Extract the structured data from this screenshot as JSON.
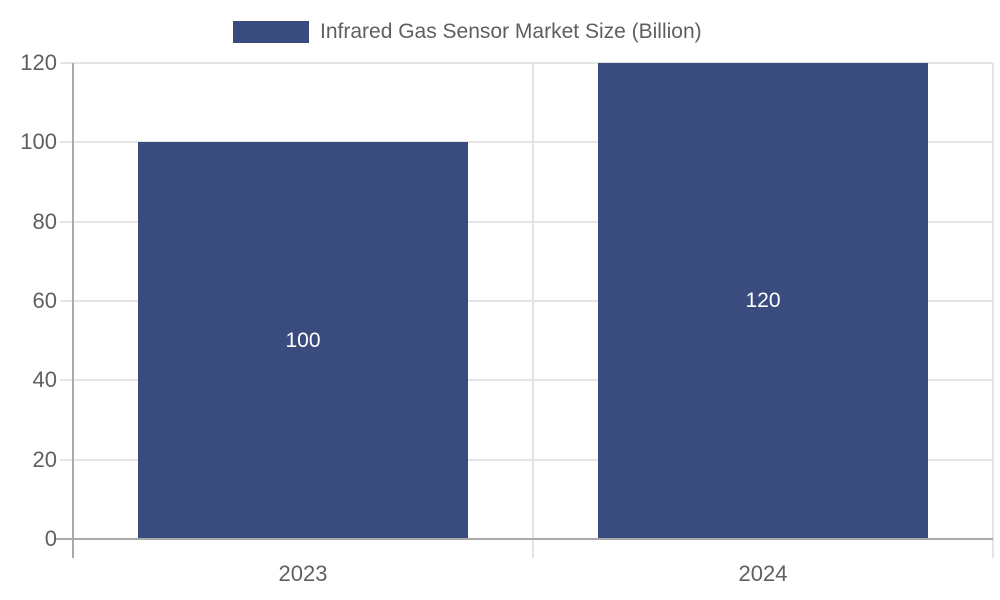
{
  "legend": {
    "label": "Infrared Gas Sensor Market Size (Billion)"
  },
  "chart_data": {
    "type": "bar",
    "title": "",
    "categories": [
      "2023",
      "2024"
    ],
    "series": [
      {
        "name": "Infrared Gas Sensor Market Size (Billion)",
        "values": [
          100,
          120
        ]
      }
    ],
    "value_labels": [
      "100",
      "120"
    ],
    "xlabel": "",
    "ylabel": "",
    "ylim": [
      0,
      120
    ],
    "yticks": [
      0,
      20,
      40,
      60,
      80,
      100,
      120
    ],
    "grid": true,
    "legend_position": "top",
    "colors": {
      "bar": "#3a4b7e",
      "grid": "#e4e4e4",
      "axis": "#a9a9a9",
      "tick_label": "#606060",
      "value_label": "#ffffff"
    }
  }
}
